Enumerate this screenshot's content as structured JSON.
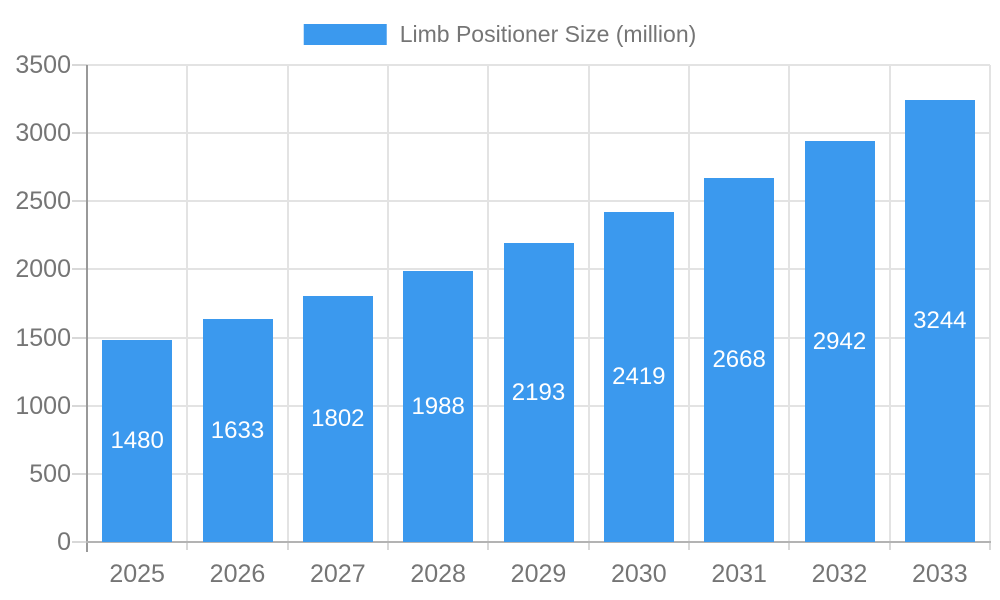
{
  "legend": {
    "label": "Limb Positioner Size (million)"
  },
  "chart_data": {
    "type": "bar",
    "title": "",
    "categories": [
      "2025",
      "2026",
      "2027",
      "2028",
      "2029",
      "2030",
      "2031",
      "2032",
      "2033"
    ],
    "series": [
      {
        "name": "Limb Positioner Size (million)",
        "values": [
          1480,
          1633,
          1802,
          1988,
          2193,
          2419,
          2668,
          2942,
          3244
        ]
      }
    ],
    "bar_labels": [
      1480,
      1633,
      1802,
      1988,
      2193,
      2419,
      2668,
      2942,
      3244
    ],
    "xlabel": "",
    "ylabel": "",
    "ylim": [
      0,
      3500
    ],
    "yticks": [
      0,
      500,
      1000,
      1500,
      2000,
      2500,
      3000,
      3500
    ],
    "grid": true,
    "legend_position": "top-center",
    "colors": {
      "bar": "#3B99EE",
      "bar_label": "#FFFFFF",
      "axis_text": "#757575",
      "gridline": "#E3E3E3",
      "tick": "#D8D8D8",
      "x_axis_line": "#B3B3B3",
      "y_axis_line": "#999999"
    }
  }
}
